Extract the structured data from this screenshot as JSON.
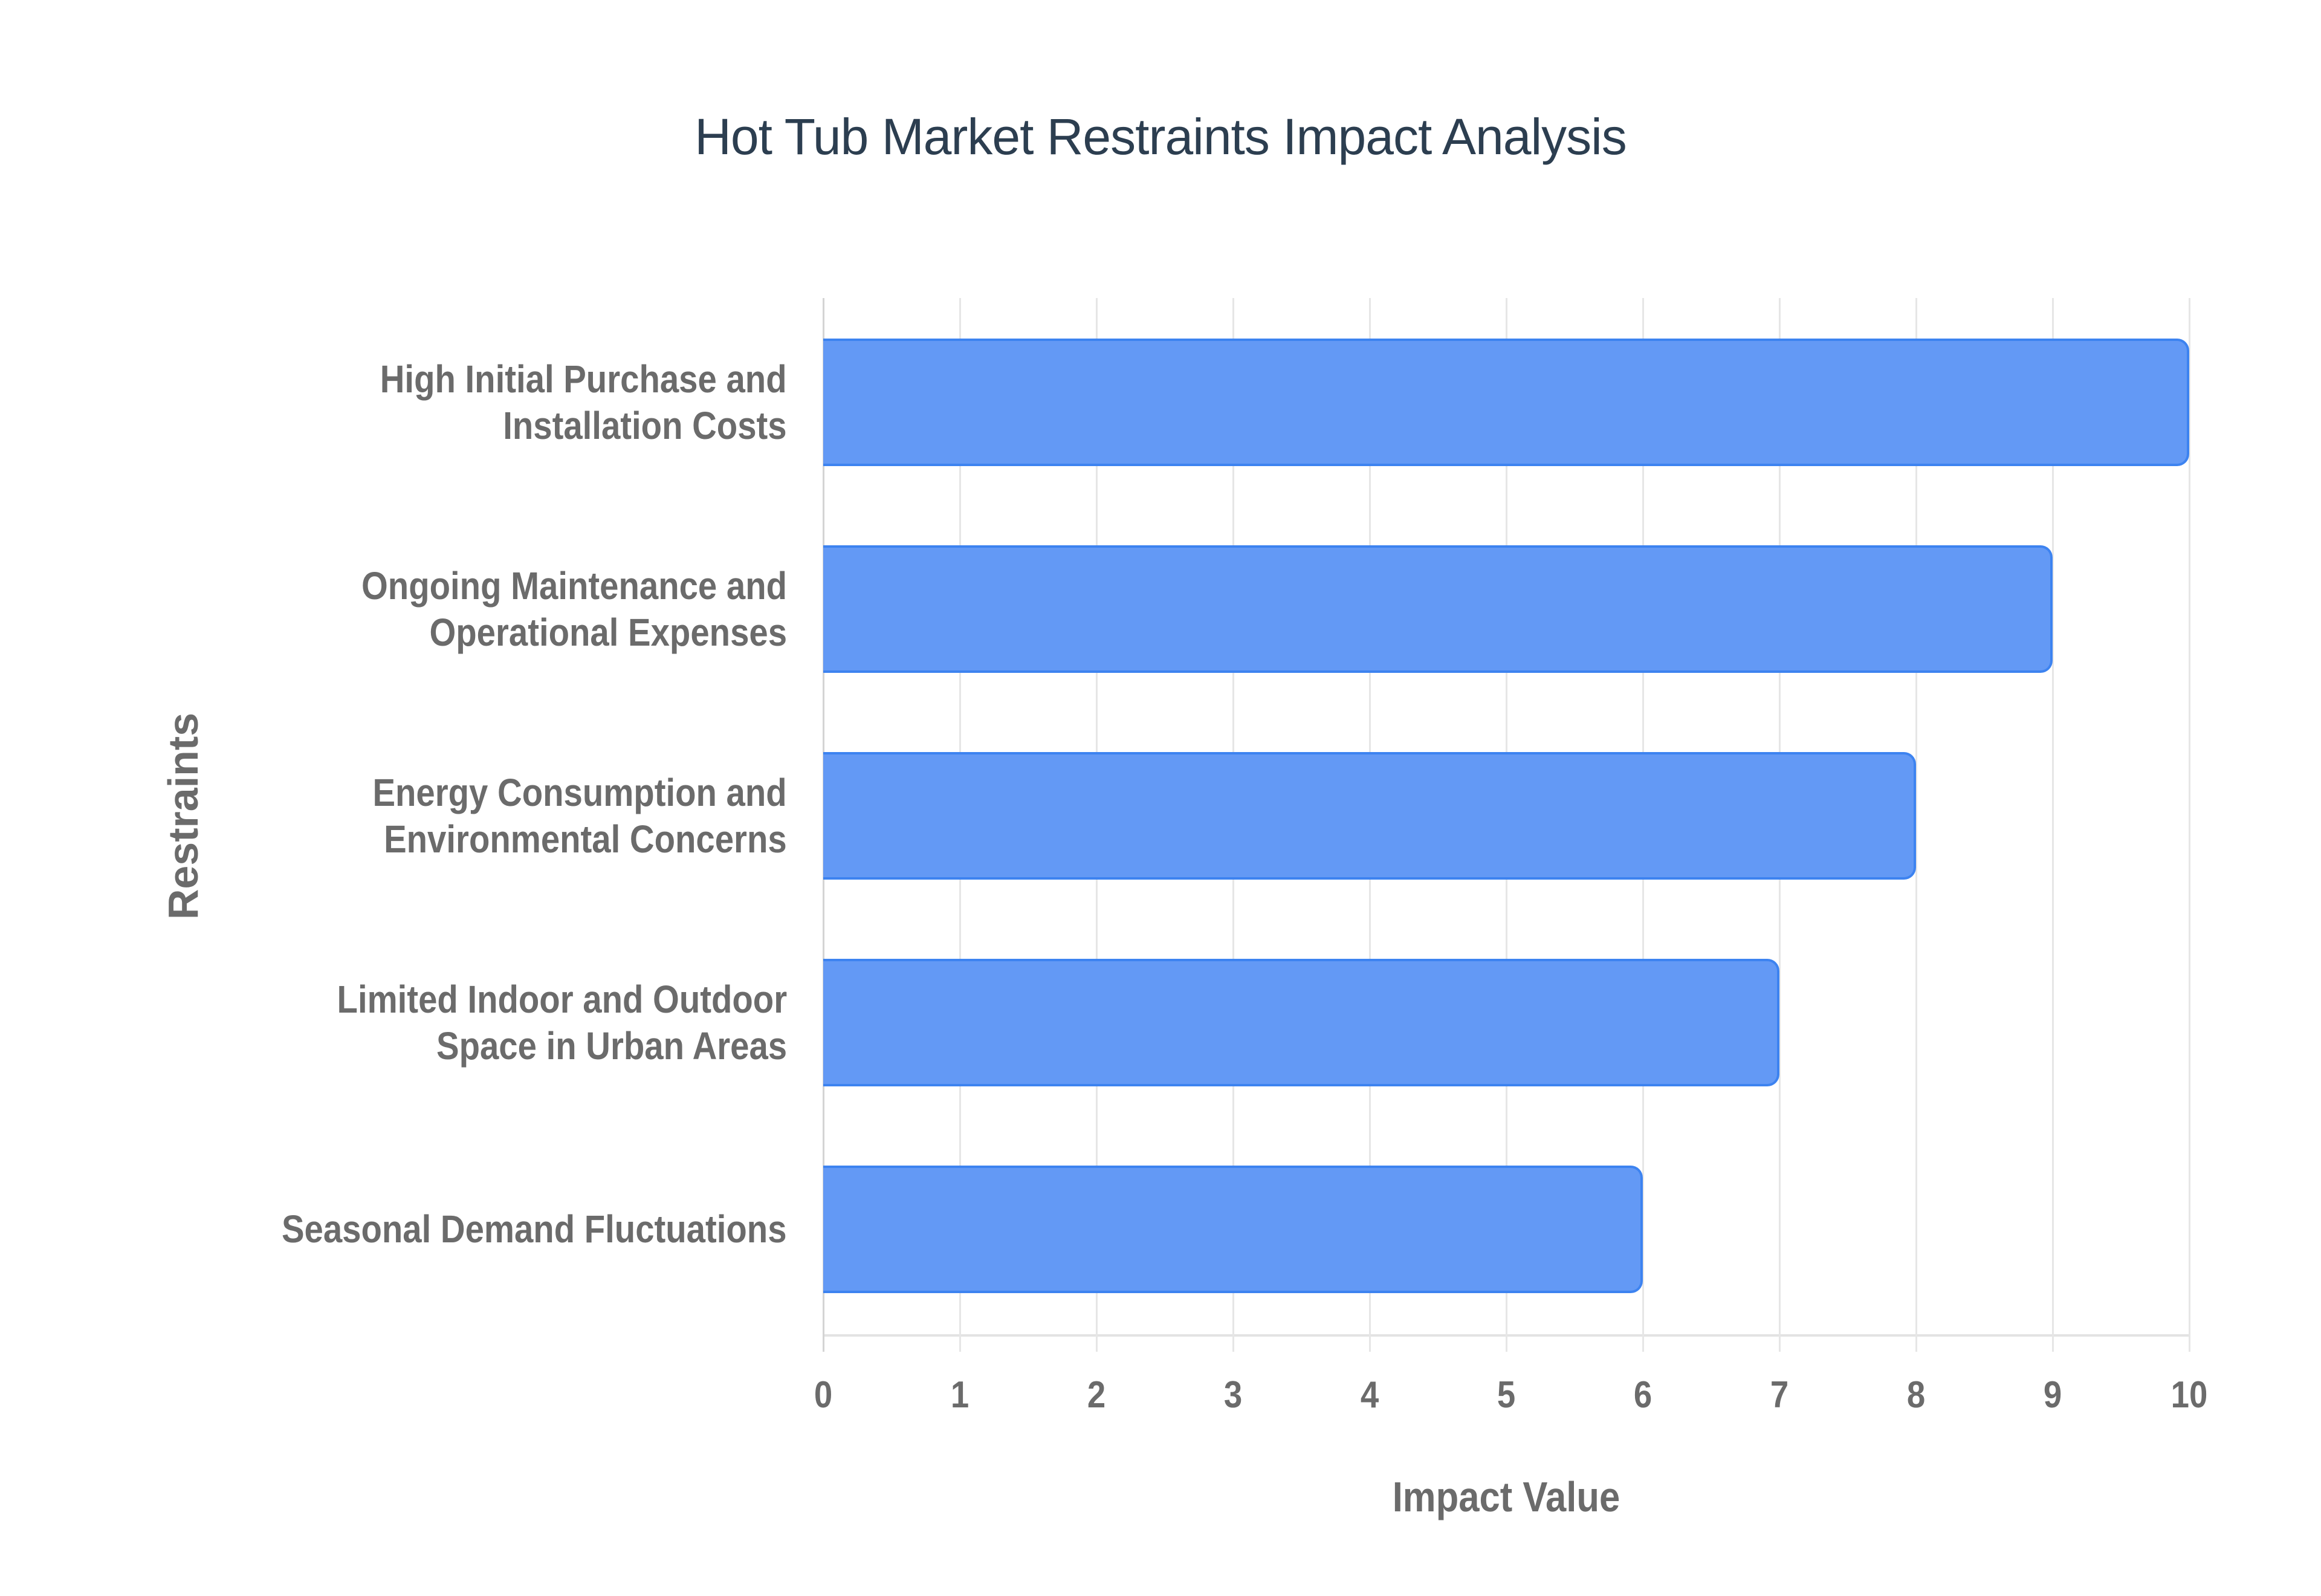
{
  "chart_data": {
    "type": "bar",
    "orientation": "horizontal",
    "title": "Hot Tub Market Restraints Impact Analysis",
    "xlabel": "Impact Value",
    "ylabel": "Restraints",
    "categories": [
      "High Initial Purchase and Installation Costs",
      "Ongoing Maintenance and Operational Expenses",
      "Energy Consumption and Environmental Concerns",
      "Limited Indoor and Outdoor Space in Urban Areas",
      "Seasonal Demand Fluctuations"
    ],
    "category_lines": [
      [
        "High Initial Purchase and",
        "Installation Costs"
      ],
      [
        "Ongoing Maintenance and",
        "Operational Expenses"
      ],
      [
        "Energy Consumption and",
        "Environmental Concerns"
      ],
      [
        "Limited Indoor and Outdoor",
        "Space in Urban Areas"
      ],
      [
        "Seasonal Demand Fluctuations"
      ]
    ],
    "values": [
      10,
      9,
      8,
      7,
      6
    ],
    "xlim": [
      0,
      10
    ],
    "xticks": [
      "0",
      "1",
      "2",
      "3",
      "4",
      "5",
      "6",
      "7",
      "8",
      "9",
      "10"
    ],
    "grid": true,
    "legend": "none",
    "colors": {
      "bar_fill": "#6399f5",
      "bar_border": "#3d83f0",
      "title": "#2c3e50",
      "axis_text": "#6b6b6b",
      "grid": "#e6e6e6"
    }
  }
}
